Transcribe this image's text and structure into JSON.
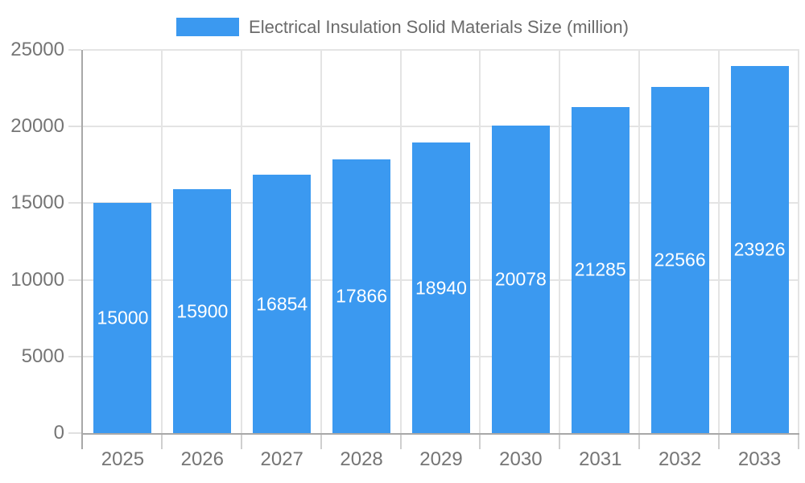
{
  "legend": {
    "label": "Electrical Insulation Solid Materials Size (million)"
  },
  "chart_data": {
    "type": "bar",
    "title": "Electrical Insulation Solid Materials Size (million)",
    "categories": [
      "2025",
      "2026",
      "2027",
      "2028",
      "2029",
      "2030",
      "2031",
      "2032",
      "2033"
    ],
    "values": [
      15000,
      15900,
      16854,
      17866,
      18940,
      20078,
      21285,
      22566,
      23926
    ],
    "xlabel": "",
    "ylabel": "",
    "ylim": [
      0,
      25000
    ],
    "yticks": [
      0,
      5000,
      10000,
      15000,
      20000,
      25000
    ],
    "grid": true,
    "legend_position": "top-center",
    "bar_color": "#3b99f0",
    "value_label_color": "#ffffff",
    "axis_label_color": "#757575",
    "gridline_color": "#e4e4e4",
    "axis_line_color": "#a8a8a8"
  }
}
